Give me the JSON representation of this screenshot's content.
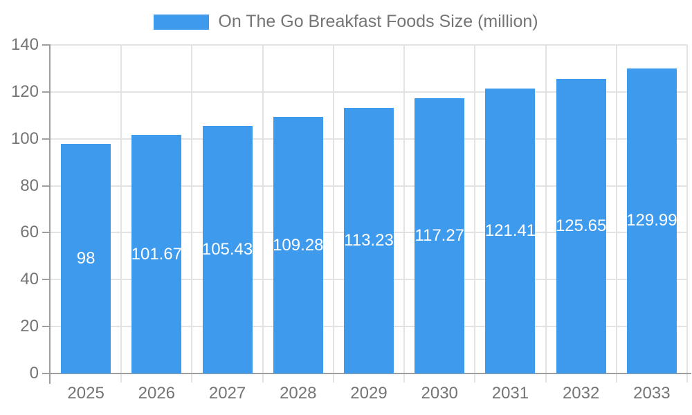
{
  "chart_data": {
    "type": "bar",
    "title": "",
    "legend": {
      "label": "On The Go Breakfast Foods Size (million)",
      "position": "top-center"
    },
    "categories": [
      "2025",
      "2026",
      "2027",
      "2028",
      "2029",
      "2030",
      "2031",
      "2032",
      "2033"
    ],
    "values": [
      98,
      101.67,
      105.43,
      109.28,
      113.23,
      117.27,
      121.41,
      125.65,
      129.99
    ],
    "value_labels": [
      "98",
      "101.67",
      "105.43",
      "109.28",
      "113.23",
      "117.27",
      "121.41",
      "125.65",
      "129.99"
    ],
    "xlabel": "",
    "ylabel": "",
    "ylim": [
      0,
      140
    ],
    "ytick_interval": 20,
    "yticks": [
      "0",
      "20",
      "40",
      "60",
      "80",
      "100",
      "120",
      "140"
    ],
    "grid": true,
    "colors": {
      "bar": "#3e9aec",
      "bar_value_text": "#ffffff",
      "axis_line": "#9e9e9e",
      "gridline": "#e3e3e3",
      "tick_text": "#757575",
      "legend_text": "#757575",
      "background": "#ffffff"
    }
  }
}
